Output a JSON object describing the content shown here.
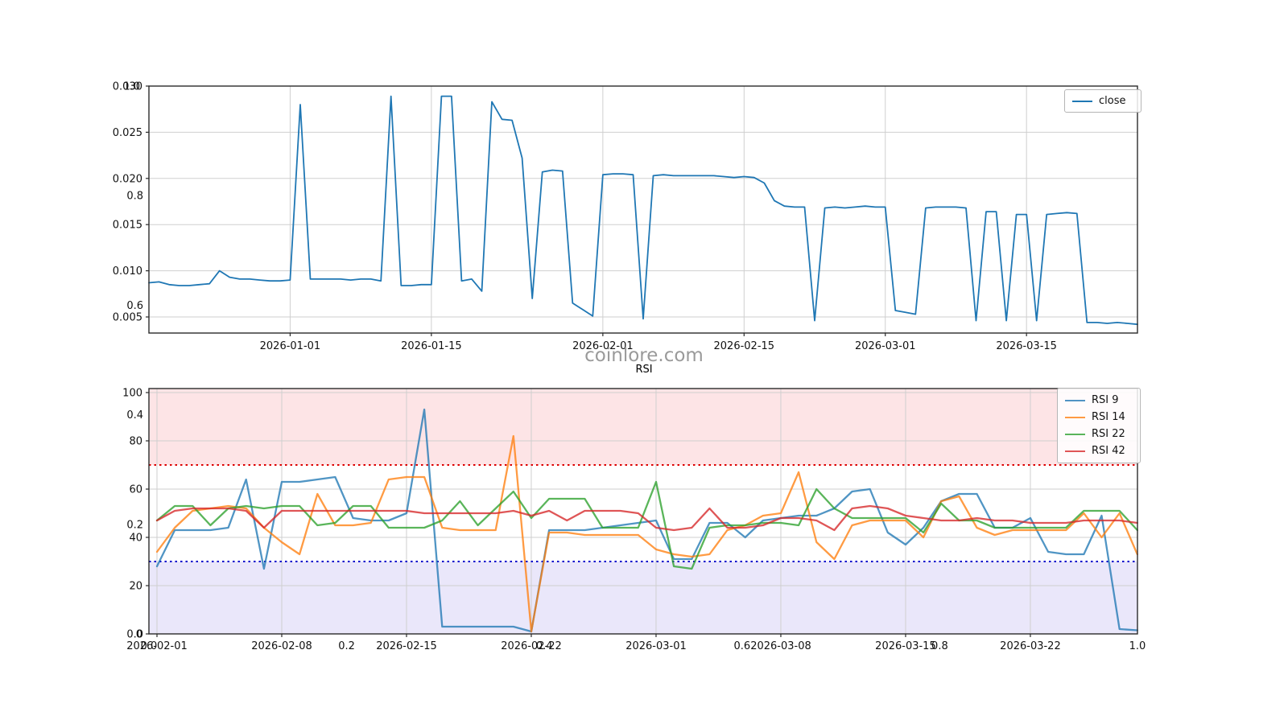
{
  "watermark": "coinlore.com",
  "price_chart": {
    "legend": [
      {
        "label": "close",
        "color": "#1f77b4"
      }
    ],
    "y_tick_labels": [
      "0.030",
      "0.025",
      "0.020",
      "0.015",
      "0.010",
      "0.005"
    ],
    "x_tick_labels": [
      "2026-01-01",
      "2026-01-15",
      "2026-02-01",
      "2026-02-15",
      "2026-03-01",
      "2026-03-15"
    ]
  },
  "rsi_chart": {
    "title": "RSI",
    "legend": [
      {
        "label": "RSI 9",
        "color": "#1f77b4"
      },
      {
        "label": "RSI 14",
        "color": "#ff7f0e"
      },
      {
        "label": "RSI 22",
        "color": "#2ca02c"
      },
      {
        "label": "RSI 42",
        "color": "#d62728"
      }
    ],
    "y_tick_labels": [
      "100",
      "80",
      "60",
      "40",
      "20",
      "0"
    ],
    "x_tick_labels": [
      "2026-02-01",
      "2026-02-08",
      "2026-02-15",
      "2026-02-22",
      "2026-03-01",
      "2026-03-08",
      "2026-03-15",
      "2026-03-22"
    ],
    "overbought_level": 70,
    "oversold_level": 30,
    "overbought_line_color": "#dd0000",
    "oversold_line_color": "#0000cc",
    "overbought_band_color": "rgba(240,50,60,0.13)",
    "oversold_band_color": "rgba(90,70,220,0.13)"
  },
  "overlay_axis": {
    "x_tick_labels": [
      "0.0",
      "0.2",
      "0.4",
      "0.6",
      "0.8",
      "1.0"
    ],
    "y_tick_labels": [
      "1.0",
      "0.8",
      "0.6",
      "0.4",
      "0.2",
      "0.0"
    ]
  },
  "chart_data": [
    {
      "type": "line",
      "title": "close price",
      "x_start": "2025-12-18",
      "x_end": "2026-03-26",
      "cadence": "daily",
      "ylim": [
        0.0033,
        0.03
      ],
      "grid": true,
      "legend_position": "upper right",
      "x_ticks": [
        "2026-01-01",
        "2026-01-15",
        "2026-02-01",
        "2026-02-15",
        "2026-03-01",
        "2026-03-15"
      ],
      "y_ticks": [
        0.03,
        0.025,
        0.02,
        0.015,
        0.01,
        0.005
      ],
      "series": [
        {
          "name": "close",
          "color": "#1f77b4",
          "values": [
            0.0087,
            0.0088,
            0.0085,
            0.0084,
            0.0084,
            0.0085,
            0.0086,
            0.01,
            0.0093,
            0.0091,
            0.0091,
            0.009,
            0.0089,
            0.0089,
            0.009,
            0.028,
            0.0091,
            0.0091,
            0.0091,
            0.0091,
            0.009,
            0.0091,
            0.0091,
            0.0089,
            0.0289,
            0.0084,
            0.0084,
            0.0085,
            0.0085,
            0.0289,
            0.0289,
            0.0089,
            0.0091,
            0.0078,
            0.0283,
            0.0264,
            0.0263,
            0.0222,
            0.007,
            0.0207,
            0.0209,
            0.0208,
            0.0065,
            0.0058,
            0.0051,
            0.0204,
            0.0205,
            0.0205,
            0.0204,
            0.0048,
            0.0203,
            0.0204,
            0.0203,
            0.0203,
            0.0203,
            0.0203,
            0.0203,
            0.0202,
            0.0201,
            0.0202,
            0.0201,
            0.0195,
            0.0176,
            0.017,
            0.0169,
            0.0169,
            0.0046,
            0.0168,
            0.0169,
            0.0168,
            0.0169,
            0.017,
            0.0169,
            0.0169,
            0.0057,
            0.0055,
            0.0053,
            0.0168,
            0.0169,
            0.0169,
            0.0169,
            0.0168,
            0.0046,
            0.0164,
            0.0164,
            0.0046,
            0.0161,
            0.0161,
            0.0046,
            0.0161,
            0.0162,
            0.0163,
            0.0162,
            0.0044,
            0.0044,
            0.0043,
            0.0044,
            0.0043,
            0.0042
          ]
        }
      ]
    },
    {
      "type": "line",
      "title": "RSI",
      "x_start": "2026-02-01",
      "x_end": "2026-03-28",
      "cadence": "daily",
      "ylim": [
        0,
        100
      ],
      "grid": true,
      "legend_position": "upper right",
      "x_ticks": [
        "2026-02-01",
        "2026-02-08",
        "2026-02-15",
        "2026-02-22",
        "2026-03-01",
        "2026-03-08",
        "2026-03-15",
        "2026-03-22"
      ],
      "y_ticks": [
        100,
        80,
        60,
        40,
        20,
        0
      ],
      "bands": [
        {
          "name": "overbought",
          "from": 70,
          "to": 100
        },
        {
          "name": "oversold",
          "from": 0,
          "to": 30
        }
      ],
      "hlines": [
        {
          "name": "overbought-threshold",
          "value": 70,
          "style": "dotted",
          "color": "#dd0000"
        },
        {
          "name": "oversold-threshold",
          "value": 30,
          "style": "dotted",
          "color": "#0000cc"
        }
      ],
      "series": [
        {
          "name": "RSI 9",
          "color": "#1f77b4",
          "values": [
            28,
            43,
            43,
            43,
            44,
            64,
            27,
            63,
            63,
            64,
            65,
            48,
            47,
            47,
            50,
            93,
            3,
            3,
            3,
            3,
            3,
            1,
            43,
            43,
            43,
            44,
            45,
            46,
            47,
            31,
            31,
            46,
            46,
            40,
            47,
            48,
            49,
            49,
            52,
            59,
            60,
            42,
            37,
            44,
            55,
            58,
            58,
            44,
            44,
            48,
            34,
            33,
            33,
            49,
            2,
            1.5
          ]
        },
        {
          "name": "RSI 14",
          "color": "#ff7f0e",
          "values": [
            34,
            44,
            51,
            52,
            53,
            52,
            44,
            38,
            33,
            58,
            45,
            45,
            46,
            64,
            65,
            65,
            44,
            43,
            43,
            43,
            82,
            1,
            42,
            42,
            41,
            41,
            41,
            41,
            35,
            33,
            32,
            33,
            43,
            45,
            49,
            50,
            67,
            38,
            31,
            45,
            47,
            47,
            47,
            40,
            55,
            57,
            44,
            41,
            43,
            43,
            43,
            43,
            50,
            40,
            50,
            33
          ]
        },
        {
          "name": "RSI 22",
          "color": "#2ca02c",
          "values": [
            47,
            53,
            53,
            45,
            52,
            53,
            52,
            53,
            53,
            45,
            46,
            53,
            53,
            44,
            44,
            44,
            47,
            55,
            45,
            52,
            59,
            48,
            56,
            56,
            56,
            44,
            44,
            44,
            63,
            28,
            27,
            44,
            45,
            45,
            46,
            46,
            45,
            60,
            52,
            48,
            48,
            48,
            48,
            42,
            54,
            47,
            47,
            44,
            44,
            44,
            44,
            44,
            51,
            51,
            51,
            43
          ]
        },
        {
          "name": "RSI 42",
          "color": "#d62728",
          "values": [
            47,
            51,
            52,
            52,
            52,
            51,
            44,
            51,
            51,
            51,
            51,
            51,
            51,
            51,
            51,
            50,
            50,
            50,
            50,
            50,
            51,
            49,
            51,
            47,
            51,
            51,
            51,
            50,
            44,
            43,
            44,
            52,
            44,
            44,
            45,
            48,
            48,
            47,
            43,
            52,
            53,
            52,
            49,
            48,
            47,
            47,
            48,
            47,
            47,
            46,
            46,
            46,
            47,
            47,
            47,
            46
          ]
        }
      ]
    }
  ]
}
